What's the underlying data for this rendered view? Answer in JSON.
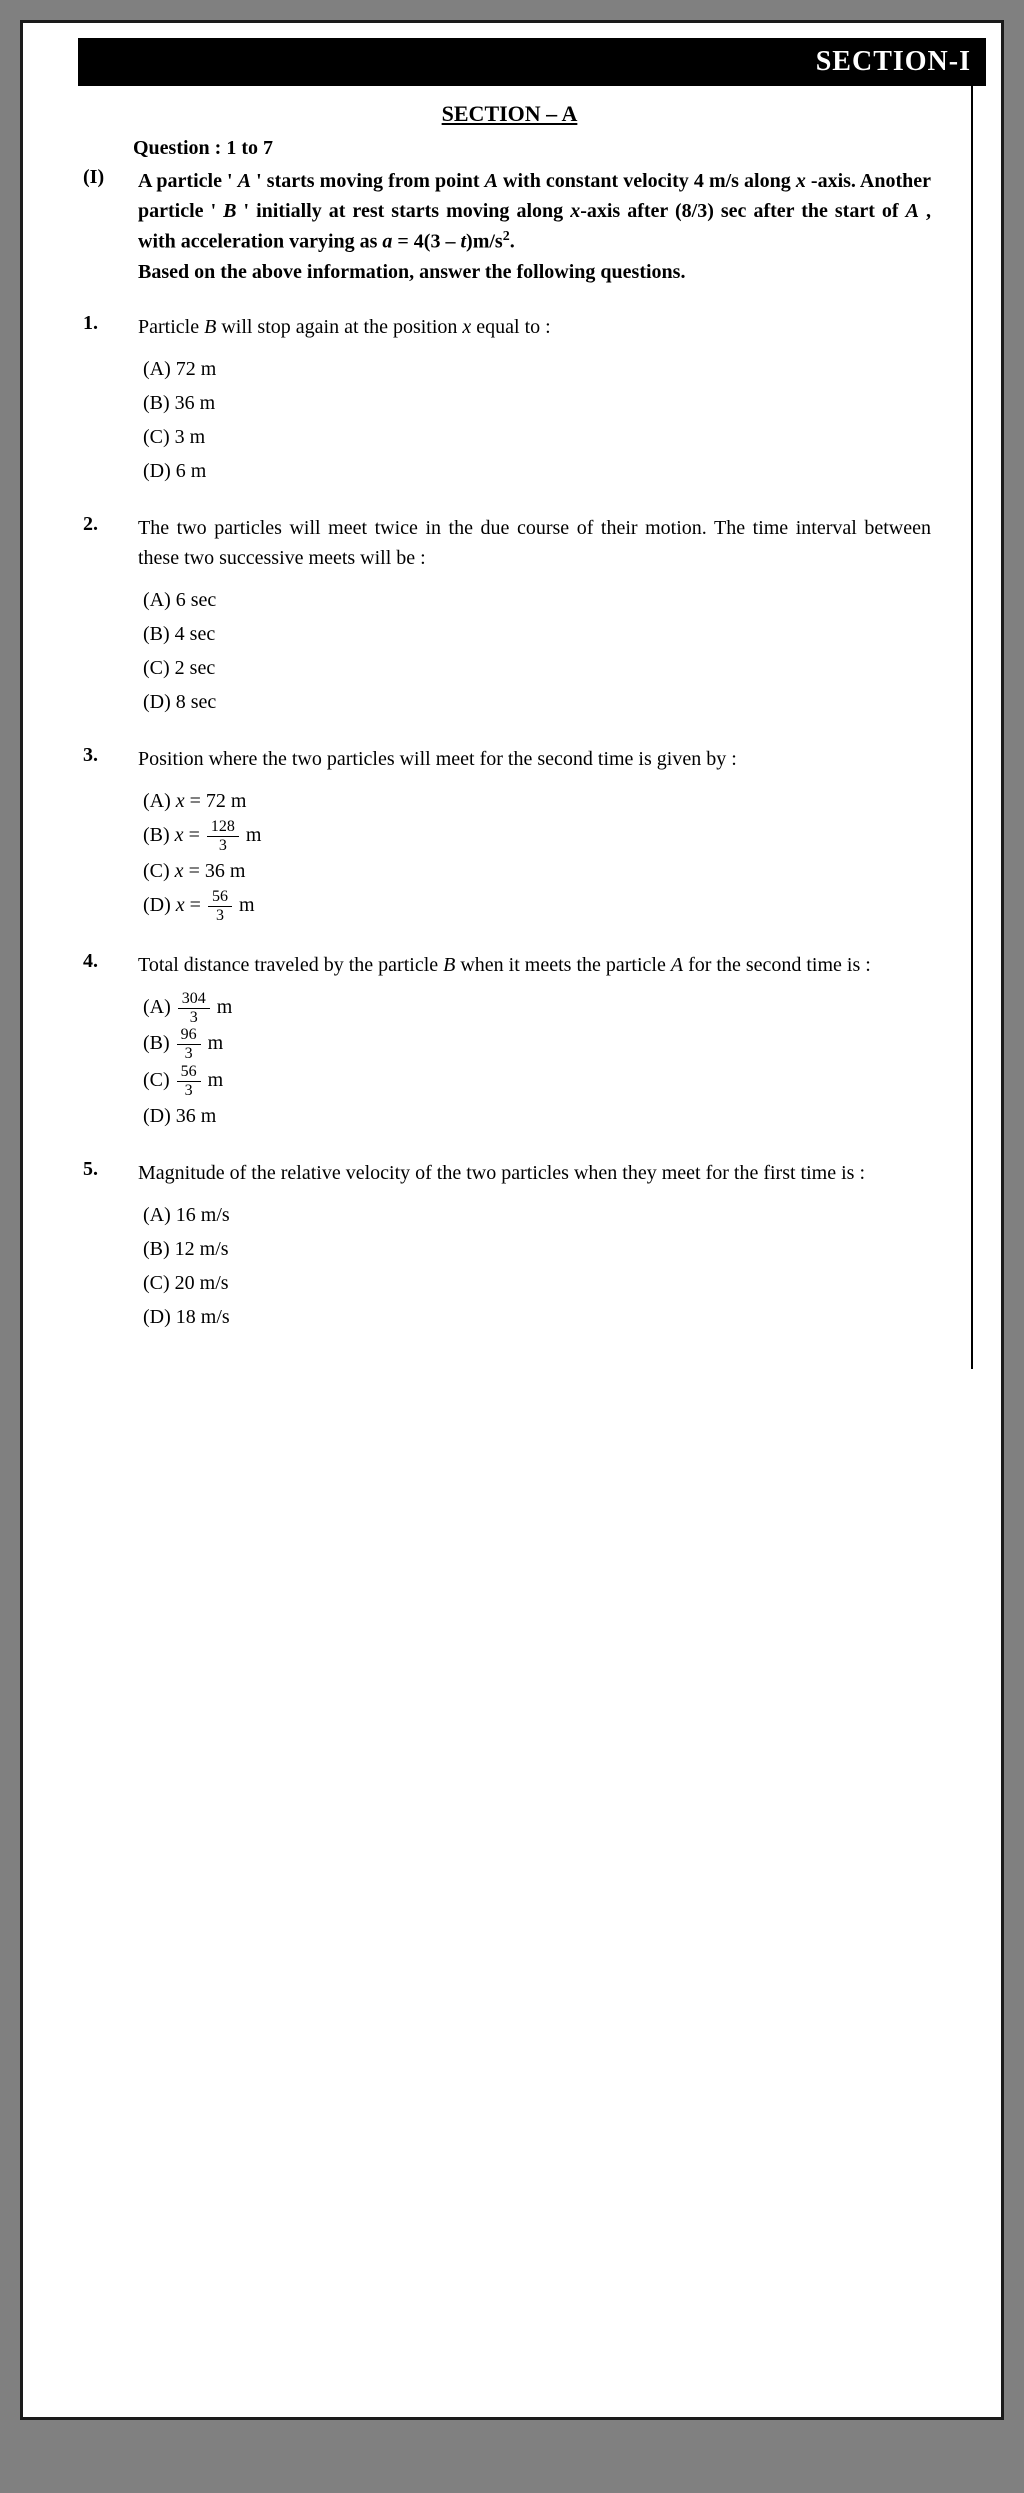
{
  "section_header": "SECTION-I",
  "section_subheader": "SECTION – A",
  "question_range": "Question : 1 to 7",
  "passage": {
    "num": "(I)",
    "text_parts": {
      "p1": "A particle ' ",
      "p2": " ' starts moving from point ",
      "p3": " with constant velocity 4 m/s along ",
      "p4": " -axis. Another particle ' ",
      "p5": " ' initially at rest starts moving along ",
      "p6": "-axis after (8/3) sec after the start of ",
      "p7": " , with acceleration varying as ",
      "p8": "a",
      "p9": " = 4(3 – ",
      "p10": "t",
      "p11": ")m/s",
      "p12": ".",
      "p13": "Based on the above information, answer the following questions.",
      "A": "A",
      "B": "B",
      "x": "x"
    }
  },
  "questions": [
    {
      "num": "1.",
      "text_pre": "Particle ",
      "text_var": "B",
      "text_post": " will stop again at the position ",
      "text_var2": "x",
      "text_end": " equal to :",
      "options": [
        "(A)  72 m",
        "(B)  36 m",
        "(C)  3 m",
        "(D)  6 m"
      ]
    },
    {
      "num": "2.",
      "text": "The two particles will meet twice in the due course of their motion. The time interval between these two successive meets will be :",
      "options": [
        "(A) 6 sec",
        "(B) 4 sec",
        "(C) 2 sec",
        "(D) 8 sec"
      ]
    },
    {
      "num": "3.",
      "text": "Position where the two particles will meet for the second time is given by :",
      "options_html": [
        {
          "label": "(A)  ",
          "var": "x",
          "eq": " = 72 m"
        },
        {
          "label": "(B)  ",
          "var": "x",
          "eq": " = ",
          "frac_num": "128",
          "frac_den": "3",
          "unit": " m"
        },
        {
          "label": "(C)  ",
          "var": "x",
          "eq": " = 36 m"
        },
        {
          "label": "(D)  ",
          "var": "x",
          "eq": " = ",
          "frac_num": "56",
          "frac_den": "3",
          "unit": " m"
        }
      ]
    },
    {
      "num": "4.",
      "text_pre": "Total distance traveled by the particle ",
      "text_var": "B",
      "text_mid": " when it meets the particle ",
      "text_var2": "A",
      "text_post": " for the second time is :",
      "options_html": [
        {
          "label": "(A) ",
          "frac_num": "304",
          "frac_den": "3",
          "unit": " m"
        },
        {
          "label": "(B) ",
          "frac_num": "96",
          "frac_den": "3",
          "unit": " m"
        },
        {
          "label": "(C) ",
          "frac_num": "56",
          "frac_den": "3",
          "unit": " m"
        },
        {
          "label": "(D)  36 m"
        }
      ]
    },
    {
      "num": "5.",
      "text": "Magnitude of the relative velocity of the two particles when they meet for the first time is :",
      "options": [
        "(A) 16 m/s",
        "(B) 12 m/s",
        "(C) 20 m/s",
        "(D) 18 m/s"
      ]
    }
  ],
  "colors": {
    "page_bg": "#ffffff",
    "outer_bg": "#808080",
    "header_bg": "#000000",
    "header_fg": "#ffffff",
    "text": "#000000"
  }
}
